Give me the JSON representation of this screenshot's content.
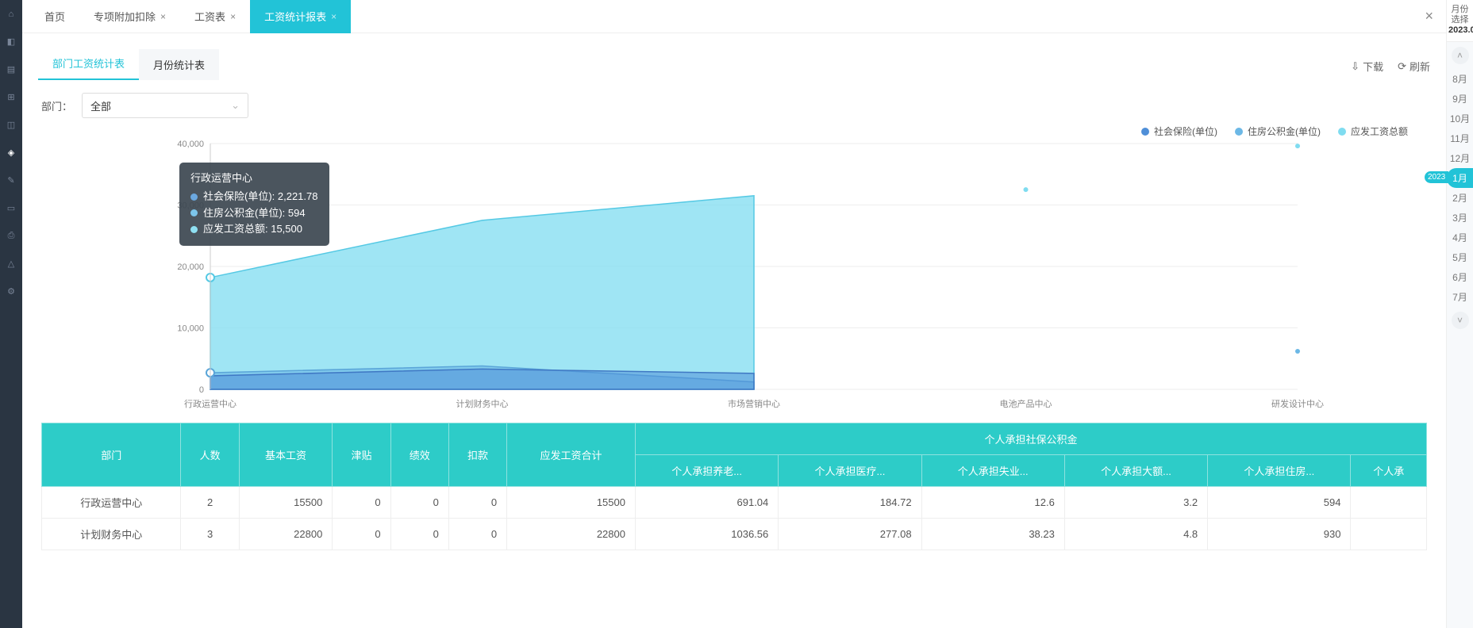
{
  "topTabs": [
    {
      "label": "首页",
      "closable": false
    },
    {
      "label": "专项附加扣除",
      "closable": true
    },
    {
      "label": "工资表",
      "closable": true
    },
    {
      "label": "工资统计报表",
      "closable": true,
      "active": true
    }
  ],
  "subTabs": {
    "a": "部门工资统计表",
    "b": "月份统计表"
  },
  "actions": {
    "download": "下载",
    "refresh": "刷新"
  },
  "filter": {
    "label": "部门：",
    "value": "全部"
  },
  "legend": {
    "s1": {
      "label": "社会保险(单位)",
      "color": "#4f8fd8"
    },
    "s2": {
      "label": "住房公积金(单位)",
      "color": "#6cb8e6"
    },
    "s3": {
      "label": "应发工资总额",
      "color": "#7fdcf0"
    }
  },
  "tooltip": {
    "title": "行政运营中心",
    "rows": [
      {
        "color": "#6ba8e0",
        "label": "社会保险(单位): 2,221.78"
      },
      {
        "color": "#7cc5ea",
        "label": "住房公积金(单位): 594"
      },
      {
        "color": "#8fe0f2",
        "label": "应发工资总额: 15,500"
      }
    ]
  },
  "chart": {
    "type": "area",
    "ylim": [
      0,
      40000
    ],
    "yticks": [
      0,
      10000,
      20000,
      30000,
      40000
    ],
    "ytick_labels": [
      "0",
      "10,000",
      "20,000",
      "30,000",
      "40,000"
    ],
    "categories": [
      "行政运营中心",
      "计划财务中心",
      "市场营销中心",
      "电池产品中心",
      "研发设计中心"
    ],
    "series": [
      {
        "name": "应发工资总额",
        "fill": "#7fdcf0",
        "fillOpacity": 0.75,
        "stroke": "#55c9e4",
        "values": [
          18200,
          27500,
          31500,
          null,
          null
        ]
      },
      {
        "name": "住房公积金(单位)",
        "fill": "#6cb8e6",
        "fillOpacity": 0.6,
        "stroke": "#5aa5d8",
        "values": [
          2700,
          3800,
          1200,
          null,
          null
        ]
      },
      {
        "name": "社会保险(单位)",
        "fill": "#4f8fd8",
        "fillOpacity": 0.55,
        "stroke": "#3f78c4",
        "values": [
          2200,
          3300,
          2600,
          null,
          null
        ]
      }
    ],
    "scatter": [
      {
        "cat": 3,
        "y": 32500,
        "color": "#7fdcf0"
      },
      {
        "cat": 4,
        "y": 39600,
        "color": "#7fdcf0"
      },
      {
        "cat": 4,
        "y": 6200,
        "color": "#6cb8e6"
      }
    ],
    "background": "#ffffff",
    "grid_color": "#eeeeee"
  },
  "table": {
    "groupHeader": "个人承担社保公积金",
    "cols": [
      "部门",
      "人数",
      "基本工资",
      "津贴",
      "绩效",
      "扣款",
      "应发工资合计",
      "个人承担养老...",
      "个人承担医疗...",
      "个人承担失业...",
      "个人承担大额...",
      "个人承担住房...",
      "个人承"
    ],
    "rows": [
      [
        "行政运营中心",
        "2",
        "15500",
        "0",
        "0",
        "0",
        "15500",
        "691.04",
        "184.72",
        "12.6",
        "3.2",
        "594",
        ""
      ],
      [
        "计划财务中心",
        "3",
        "22800",
        "0",
        "0",
        "0",
        "22800",
        "1036.56",
        "277.08",
        "38.23",
        "4.8",
        "930",
        ""
      ]
    ]
  },
  "rail": {
    "header1": "月份选择",
    "header2": "2023.0",
    "months": [
      "8月",
      "9月",
      "10月",
      "11月",
      "12月",
      "1月",
      "2月",
      "3月",
      "4月",
      "5月",
      "6月",
      "7月"
    ],
    "selectedIndex": 5,
    "yearTag": "2023"
  }
}
